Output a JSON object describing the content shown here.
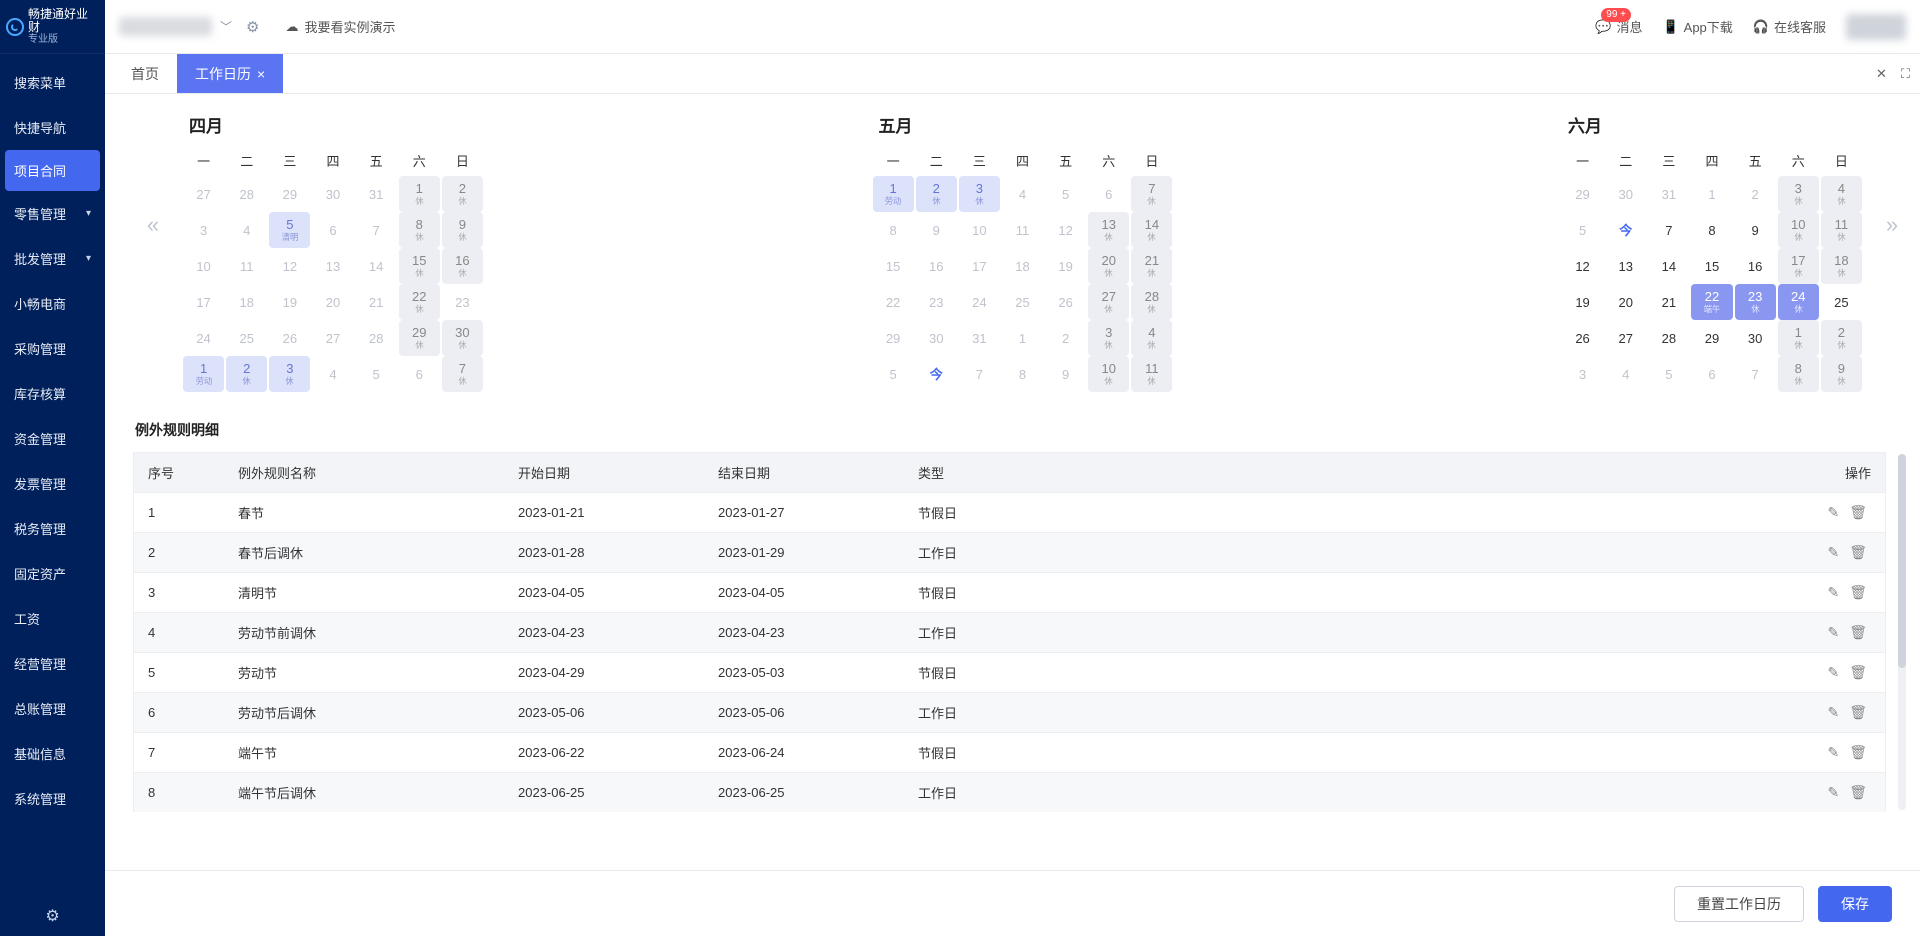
{
  "brand": {
    "name": "畅捷通好业财",
    "edition": "专业版"
  },
  "topbar": {
    "demo": "我要看实例演示",
    "msg": "消息",
    "msg_badge": "99 +",
    "app": "App下载",
    "cs": "在线客服"
  },
  "sidebar": {
    "items": [
      {
        "label": "搜索菜单",
        "sub": false
      },
      {
        "label": "快捷导航",
        "sub": false
      },
      {
        "label": "项目合同",
        "sub": false,
        "active": true
      },
      {
        "label": "零售管理",
        "sub": true
      },
      {
        "label": "批发管理",
        "sub": true
      },
      {
        "label": "小畅电商",
        "sub": false
      },
      {
        "label": "采购管理",
        "sub": false
      },
      {
        "label": "库存核算",
        "sub": false
      },
      {
        "label": "资金管理",
        "sub": false
      },
      {
        "label": "发票管理",
        "sub": false
      },
      {
        "label": "税务管理",
        "sub": false
      },
      {
        "label": "固定资产",
        "sub": false
      },
      {
        "label": "工资",
        "sub": false
      },
      {
        "label": "经营管理",
        "sub": false
      },
      {
        "label": "总账管理",
        "sub": false
      },
      {
        "label": "基础信息",
        "sub": false
      },
      {
        "label": "系统管理",
        "sub": false
      }
    ]
  },
  "tabs": {
    "home": "首页",
    "cal": "工作日历"
  },
  "weekdays": [
    "一",
    "二",
    "三",
    "四",
    "五",
    "六",
    "日"
  ],
  "months": [
    {
      "title": "四月",
      "weeks": [
        [
          {
            "n": "27",
            "cls": "other"
          },
          {
            "n": "28",
            "cls": "other"
          },
          {
            "n": "29",
            "cls": "other"
          },
          {
            "n": "30",
            "cls": "other"
          },
          {
            "n": "31",
            "cls": "other"
          },
          {
            "n": "1",
            "s": "休",
            "cls": "rest other"
          },
          {
            "n": "2",
            "s": "休",
            "cls": "rest other"
          }
        ],
        [
          {
            "n": "3",
            "cls": "other"
          },
          {
            "n": "4",
            "cls": "other"
          },
          {
            "n": "5",
            "s": "清明",
            "cls": "hol"
          },
          {
            "n": "6",
            "cls": "other"
          },
          {
            "n": "7",
            "cls": "other"
          },
          {
            "n": "8",
            "s": "休",
            "cls": "rest other"
          },
          {
            "n": "9",
            "s": "休",
            "cls": "rest other"
          }
        ],
        [
          {
            "n": "10",
            "cls": "other"
          },
          {
            "n": "11",
            "cls": "other"
          },
          {
            "n": "12",
            "cls": "other"
          },
          {
            "n": "13",
            "cls": "other"
          },
          {
            "n": "14",
            "cls": "other"
          },
          {
            "n": "15",
            "s": "休",
            "cls": "rest other"
          },
          {
            "n": "16",
            "s": "休",
            "cls": "rest other"
          }
        ],
        [
          {
            "n": "17",
            "cls": "other"
          },
          {
            "n": "18",
            "cls": "other"
          },
          {
            "n": "19",
            "cls": "other"
          },
          {
            "n": "20",
            "cls": "other"
          },
          {
            "n": "21",
            "cls": "other"
          },
          {
            "n": "22",
            "s": "休",
            "cls": "rest other"
          },
          {
            "n": "23",
            "cls": "other"
          }
        ],
        [
          {
            "n": "24",
            "cls": "other"
          },
          {
            "n": "25",
            "cls": "other"
          },
          {
            "n": "26",
            "cls": "other"
          },
          {
            "n": "27",
            "cls": "other"
          },
          {
            "n": "28",
            "cls": "other"
          },
          {
            "n": "29",
            "s": "休",
            "cls": "rest other"
          },
          {
            "n": "30",
            "s": "休",
            "cls": "rest other"
          }
        ],
        [
          {
            "n": "1",
            "s": "劳动",
            "cls": "hol other"
          },
          {
            "n": "2",
            "s": "休",
            "cls": "hol other"
          },
          {
            "n": "3",
            "s": "休",
            "cls": "hol other"
          },
          {
            "n": "4",
            "cls": "other"
          },
          {
            "n": "5",
            "cls": "other"
          },
          {
            "n": "6",
            "cls": "other"
          },
          {
            "n": "7",
            "s": "休",
            "cls": "rest other"
          }
        ]
      ]
    },
    {
      "title": "五月",
      "weeks": [
        [
          {
            "n": "1",
            "s": "劳动",
            "cls": "hol"
          },
          {
            "n": "2",
            "s": "休",
            "cls": "hol"
          },
          {
            "n": "3",
            "s": "休",
            "cls": "hol"
          },
          {
            "n": "4",
            "cls": "other"
          },
          {
            "n": "5",
            "cls": "other"
          },
          {
            "n": "6",
            "cls": "other"
          },
          {
            "n": "7",
            "s": "休",
            "cls": "rest other"
          }
        ],
        [
          {
            "n": "8",
            "cls": "other"
          },
          {
            "n": "9",
            "cls": "other"
          },
          {
            "n": "10",
            "cls": "other"
          },
          {
            "n": "11",
            "cls": "other"
          },
          {
            "n": "12",
            "cls": "other"
          },
          {
            "n": "13",
            "s": "休",
            "cls": "rest other"
          },
          {
            "n": "14",
            "s": "休",
            "cls": "rest other"
          }
        ],
        [
          {
            "n": "15",
            "cls": "other"
          },
          {
            "n": "16",
            "cls": "other"
          },
          {
            "n": "17",
            "cls": "other"
          },
          {
            "n": "18",
            "cls": "other"
          },
          {
            "n": "19",
            "cls": "other"
          },
          {
            "n": "20",
            "s": "休",
            "cls": "rest other"
          },
          {
            "n": "21",
            "s": "休",
            "cls": "rest other"
          }
        ],
        [
          {
            "n": "22",
            "cls": "other"
          },
          {
            "n": "23",
            "cls": "other"
          },
          {
            "n": "24",
            "cls": "other"
          },
          {
            "n": "25",
            "cls": "other"
          },
          {
            "n": "26",
            "cls": "other"
          },
          {
            "n": "27",
            "s": "休",
            "cls": "rest other"
          },
          {
            "n": "28",
            "s": "休",
            "cls": "rest other"
          }
        ],
        [
          {
            "n": "29",
            "cls": "other"
          },
          {
            "n": "30",
            "cls": "other"
          },
          {
            "n": "31",
            "cls": "other"
          },
          {
            "n": "1",
            "cls": "other"
          },
          {
            "n": "2",
            "cls": "other"
          },
          {
            "n": "3",
            "s": "休",
            "cls": "rest other"
          },
          {
            "n": "4",
            "s": "休",
            "cls": "rest other"
          }
        ],
        [
          {
            "n": "5",
            "cls": "other"
          },
          {
            "n": "今",
            "cls": "other today"
          },
          {
            "n": "7",
            "cls": "other"
          },
          {
            "n": "8",
            "cls": "other"
          },
          {
            "n": "9",
            "cls": "other"
          },
          {
            "n": "10",
            "s": "休",
            "cls": "rest other"
          },
          {
            "n": "11",
            "s": "休",
            "cls": "rest other"
          }
        ]
      ]
    },
    {
      "title": "六月",
      "weeks": [
        [
          {
            "n": "29",
            "cls": "other"
          },
          {
            "n": "30",
            "cls": "other"
          },
          {
            "n": "31",
            "cls": "other"
          },
          {
            "n": "1",
            "cls": "other"
          },
          {
            "n": "2",
            "cls": "other"
          },
          {
            "n": "3",
            "s": "休",
            "cls": "rest other"
          },
          {
            "n": "4",
            "s": "休",
            "cls": "rest other"
          }
        ],
        [
          {
            "n": "5",
            "cls": "other"
          },
          {
            "n": "今",
            "cls": "today"
          },
          {
            "n": "7",
            "cls": ""
          },
          {
            "n": "8",
            "cls": ""
          },
          {
            "n": "9",
            "cls": ""
          },
          {
            "n": "10",
            "s": "休",
            "cls": "rest"
          },
          {
            "n": "11",
            "s": "休",
            "cls": "rest"
          }
        ],
        [
          {
            "n": "12",
            "cls": ""
          },
          {
            "n": "13",
            "cls": ""
          },
          {
            "n": "14",
            "cls": ""
          },
          {
            "n": "15",
            "cls": ""
          },
          {
            "n": "16",
            "cls": ""
          },
          {
            "n": "17",
            "s": "休",
            "cls": "rest"
          },
          {
            "n": "18",
            "s": "休",
            "cls": "rest"
          }
        ],
        [
          {
            "n": "19",
            "cls": ""
          },
          {
            "n": "20",
            "cls": ""
          },
          {
            "n": "21",
            "cls": ""
          },
          {
            "n": "22",
            "s": "端午",
            "cls": "hol-strong"
          },
          {
            "n": "23",
            "s": "休",
            "cls": "hol-strong"
          },
          {
            "n": "24",
            "s": "休",
            "cls": "hol-strong"
          },
          {
            "n": "25",
            "cls": ""
          }
        ],
        [
          {
            "n": "26",
            "cls": ""
          },
          {
            "n": "27",
            "cls": ""
          },
          {
            "n": "28",
            "cls": ""
          },
          {
            "n": "29",
            "cls": ""
          },
          {
            "n": "30",
            "cls": ""
          },
          {
            "n": "1",
            "s": "休",
            "cls": "rest other"
          },
          {
            "n": "2",
            "s": "休",
            "cls": "rest other"
          }
        ],
        [
          {
            "n": "3",
            "cls": "other"
          },
          {
            "n": "4",
            "cls": "other"
          },
          {
            "n": "5",
            "cls": "other"
          },
          {
            "n": "6",
            "cls": "other"
          },
          {
            "n": "7",
            "cls": "other"
          },
          {
            "n": "8",
            "s": "休",
            "cls": "rest other"
          },
          {
            "n": "9",
            "s": "休",
            "cls": "rest other"
          }
        ]
      ]
    }
  ],
  "rules": {
    "title": "例外规则明细",
    "columns": [
      "序号",
      "例外规则名称",
      "开始日期",
      "结束日期",
      "类型",
      "操作"
    ],
    "rows": [
      {
        "no": "1",
        "name": "春节",
        "start": "2023-01-21",
        "end": "2023-01-27",
        "type": "节假日"
      },
      {
        "no": "2",
        "name": "春节后调休",
        "start": "2023-01-28",
        "end": "2023-01-29",
        "type": "工作日"
      },
      {
        "no": "3",
        "name": "清明节",
        "start": "2023-04-05",
        "end": "2023-04-05",
        "type": "节假日"
      },
      {
        "no": "4",
        "name": "劳动节前调休",
        "start": "2023-04-23",
        "end": "2023-04-23",
        "type": "工作日"
      },
      {
        "no": "5",
        "name": "劳动节",
        "start": "2023-04-29",
        "end": "2023-05-03",
        "type": "节假日"
      },
      {
        "no": "6",
        "name": "劳动节后调休",
        "start": "2023-05-06",
        "end": "2023-05-06",
        "type": "工作日"
      },
      {
        "no": "7",
        "name": "端午节",
        "start": "2023-06-22",
        "end": "2023-06-24",
        "type": "节假日"
      },
      {
        "no": "8",
        "name": "端午节后调休",
        "start": "2023-06-25",
        "end": "2023-06-25",
        "type": "工作日"
      }
    ]
  },
  "footer": {
    "reset": "重置工作日历",
    "save": "保存"
  }
}
